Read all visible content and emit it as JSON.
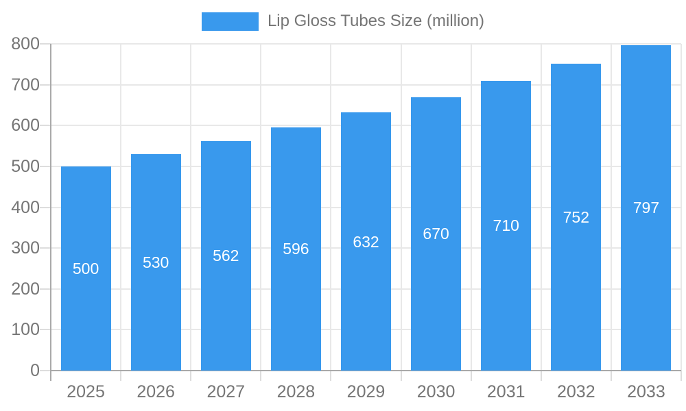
{
  "legend": {
    "label": "Lip Gloss Tubes Size (million)"
  },
  "chart_data": {
    "type": "bar",
    "title": "Lip Gloss Tubes Size (million)",
    "categories": [
      "2025",
      "2026",
      "2027",
      "2028",
      "2029",
      "2030",
      "2031",
      "2032",
      "2033"
    ],
    "values": [
      500,
      530,
      562,
      596,
      632,
      670,
      710,
      752,
      797
    ],
    "xlabel": "",
    "ylabel": "",
    "ylim": [
      0,
      800
    ],
    "yticks": [
      0,
      100,
      200,
      300,
      400,
      500,
      600,
      700,
      800
    ],
    "grid": true,
    "legend_position": "top-center",
    "bar_labels_inside": true,
    "colors": {
      "bar": "#3999ED",
      "bar_label": "#FFFFFF",
      "axis_label": "#757575",
      "axis_line": "#A9A9A9",
      "gridline": "#E8E8E8",
      "tick": "#DDDDDD",
      "background": "#FFFFFF"
    }
  }
}
